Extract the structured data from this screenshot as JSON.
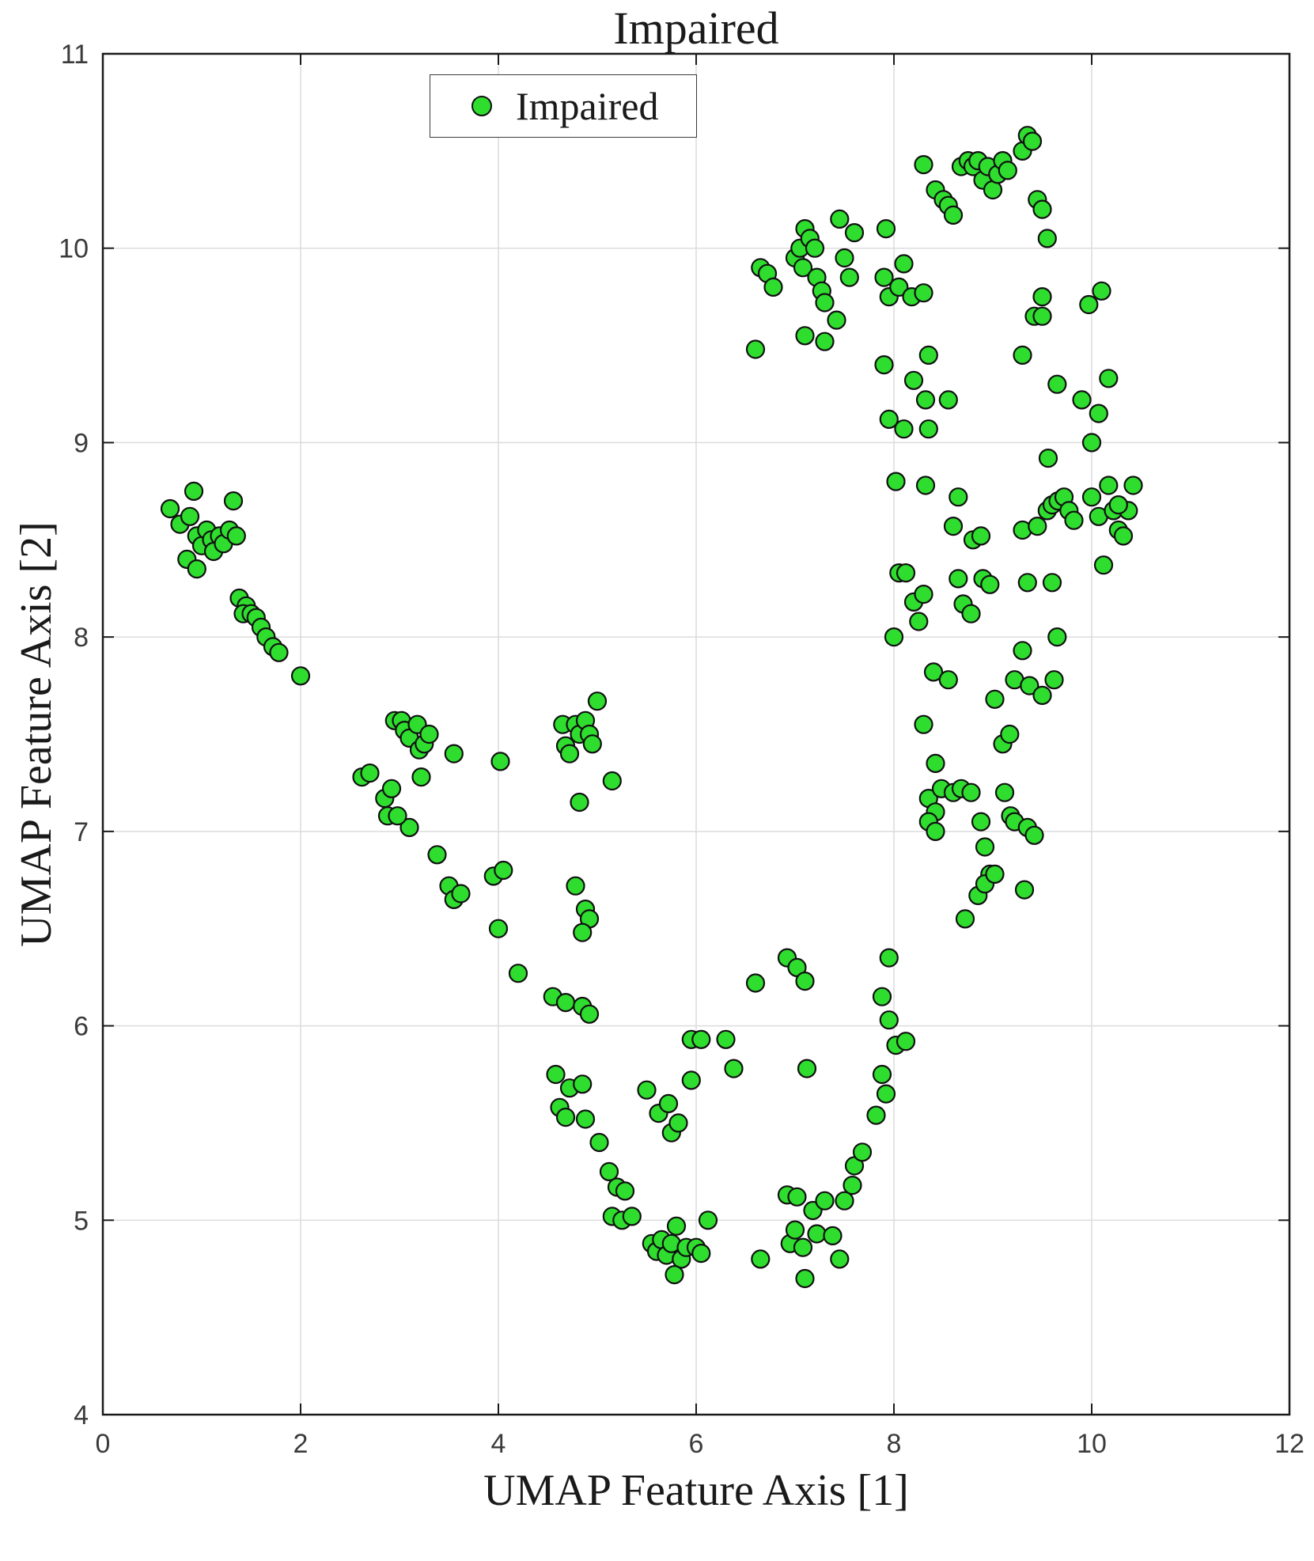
{
  "chart_data": {
    "type": "scatter",
    "title": "Impaired",
    "xlabel": "UMAP Feature Axis [1]",
    "ylabel": "UMAP Feature Axis [2]",
    "xlim": [
      0,
      12
    ],
    "ylim": [
      4,
      11
    ],
    "xticks": [
      0,
      2,
      4,
      6,
      8,
      10,
      12
    ],
    "yticks": [
      4,
      5,
      6,
      7,
      8,
      9,
      10,
      11
    ],
    "grid": true,
    "legend": {
      "label": "Impaired",
      "position": "top-center"
    },
    "marker": {
      "fill": "#2EDD2E",
      "edge": "#101010",
      "size": 22
    },
    "series": [
      {
        "name": "Impaired",
        "points": [
          [
            0.68,
            8.66
          ],
          [
            0.78,
            8.58
          ],
          [
            0.88,
            8.62
          ],
          [
            0.92,
            8.75
          ],
          [
            0.95,
            8.52
          ],
          [
            1.0,
            8.47
          ],
          [
            1.05,
            8.55
          ],
          [
            1.1,
            8.5
          ],
          [
            1.12,
            8.44
          ],
          [
            1.18,
            8.52
          ],
          [
            1.22,
            8.48
          ],
          [
            1.28,
            8.55
          ],
          [
            1.32,
            8.7
          ],
          [
            0.85,
            8.4
          ],
          [
            0.95,
            8.35
          ],
          [
            1.35,
            8.52
          ],
          [
            1.38,
            8.2
          ],
          [
            1.45,
            8.16
          ],
          [
            1.42,
            8.12
          ],
          [
            1.5,
            8.12
          ],
          [
            1.55,
            8.1
          ],
          [
            1.6,
            8.05
          ],
          [
            1.65,
            8.0
          ],
          [
            1.72,
            7.95
          ],
          [
            1.78,
            7.92
          ],
          [
            2.0,
            7.8
          ],
          [
            2.62,
            7.28
          ],
          [
            2.7,
            7.3
          ],
          [
            2.85,
            7.17
          ],
          [
            2.88,
            7.08
          ],
          [
            2.92,
            7.22
          ],
          [
            2.95,
            7.57
          ],
          [
            3.02,
            7.57
          ],
          [
            3.05,
            7.52
          ],
          [
            3.1,
            7.48
          ],
          [
            3.18,
            7.55
          ],
          [
            3.2,
            7.42
          ],
          [
            3.25,
            7.45
          ],
          [
            3.3,
            7.5
          ],
          [
            3.22,
            7.28
          ],
          [
            3.1,
            7.02
          ],
          [
            2.98,
            7.08
          ],
          [
            3.55,
            7.4
          ],
          [
            4.02,
            7.36
          ],
          [
            3.38,
            6.88
          ],
          [
            3.5,
            6.72
          ],
          [
            3.55,
            6.65
          ],
          [
            3.62,
            6.68
          ],
          [
            3.95,
            6.77
          ],
          [
            4.05,
            6.8
          ],
          [
            4.0,
            6.5
          ],
          [
            4.2,
            6.27
          ],
          [
            4.65,
            7.55
          ],
          [
            4.68,
            7.44
          ],
          [
            4.72,
            7.4
          ],
          [
            4.78,
            7.55
          ],
          [
            4.82,
            7.5
          ],
          [
            4.88,
            7.57
          ],
          [
            4.92,
            7.5
          ],
          [
            4.95,
            7.45
          ],
          [
            5.0,
            7.67
          ],
          [
            4.82,
            7.15
          ],
          [
            5.15,
            7.26
          ],
          [
            4.88,
            6.6
          ],
          [
            4.92,
            6.55
          ],
          [
            4.85,
            6.48
          ],
          [
            4.78,
            6.72
          ],
          [
            4.55,
            6.15
          ],
          [
            4.68,
            6.12
          ],
          [
            4.85,
            6.1
          ],
          [
            4.92,
            6.06
          ],
          [
            4.58,
            5.75
          ],
          [
            4.72,
            5.68
          ],
          [
            4.85,
            5.7
          ],
          [
            4.62,
            5.58
          ],
          [
            4.68,
            5.53
          ],
          [
            4.88,
            5.52
          ],
          [
            5.02,
            5.4
          ],
          [
            5.12,
            5.25
          ],
          [
            5.2,
            5.17
          ],
          [
            5.28,
            5.15
          ],
          [
            5.15,
            5.02
          ],
          [
            5.25,
            5.0
          ],
          [
            5.35,
            5.02
          ],
          [
            5.5,
            5.67
          ],
          [
            5.62,
            5.55
          ],
          [
            5.72,
            5.6
          ],
          [
            5.75,
            5.45
          ],
          [
            5.82,
            5.5
          ],
          [
            5.55,
            4.88
          ],
          [
            5.6,
            4.84
          ],
          [
            5.65,
            4.9
          ],
          [
            5.7,
            4.82
          ],
          [
            5.75,
            4.88
          ],
          [
            5.8,
            4.97
          ],
          [
            5.85,
            4.8
          ],
          [
            5.9,
            4.86
          ],
          [
            5.78,
            4.72
          ],
          [
            6.0,
            4.86
          ],
          [
            6.05,
            4.83
          ],
          [
            6.12,
            5.0
          ],
          [
            5.95,
            5.93
          ],
          [
            6.05,
            5.93
          ],
          [
            5.95,
            5.72
          ],
          [
            6.3,
            5.93
          ],
          [
            6.38,
            5.78
          ],
          [
            6.6,
            6.22
          ],
          [
            6.92,
            6.35
          ],
          [
            7.02,
            6.3
          ],
          [
            7.1,
            6.23
          ],
          [
            6.65,
            4.8
          ],
          [
            6.95,
            4.88
          ],
          [
            7.0,
            4.95
          ],
          [
            7.08,
            4.86
          ],
          [
            7.1,
            4.7
          ],
          [
            7.18,
            5.05
          ],
          [
            7.22,
            4.93
          ],
          [
            7.3,
            5.1
          ],
          [
            7.38,
            4.92
          ],
          [
            7.45,
            4.8
          ],
          [
            7.5,
            5.1
          ],
          [
            7.58,
            5.18
          ],
          [
            6.92,
            5.13
          ],
          [
            7.02,
            5.12
          ],
          [
            7.6,
            5.28
          ],
          [
            7.68,
            5.35
          ],
          [
            7.12,
            5.78
          ],
          [
            7.82,
            5.54
          ],
          [
            7.88,
            5.75
          ],
          [
            7.92,
            5.65
          ],
          [
            7.95,
            6.03
          ],
          [
            7.95,
            6.35
          ],
          [
            8.02,
            5.9
          ],
          [
            8.12,
            5.92
          ],
          [
            7.88,
            6.15
          ],
          [
            8.0,
            8.0
          ],
          [
            8.05,
            8.33
          ],
          [
            8.12,
            8.33
          ],
          [
            8.2,
            8.18
          ],
          [
            8.25,
            8.08
          ],
          [
            8.3,
            8.22
          ],
          [
            8.02,
            8.8
          ],
          [
            8.32,
            8.78
          ],
          [
            8.2,
            9.32
          ],
          [
            8.32,
            9.22
          ],
          [
            8.35,
            9.07
          ],
          [
            7.95,
            9.12
          ],
          [
            7.9,
            9.4
          ],
          [
            8.35,
            9.45
          ],
          [
            8.55,
            9.22
          ],
          [
            8.65,
            8.72
          ],
          [
            8.6,
            8.57
          ],
          [
            8.7,
            8.17
          ],
          [
            8.78,
            8.12
          ],
          [
            8.65,
            8.3
          ],
          [
            8.8,
            8.5
          ],
          [
            8.88,
            8.52
          ],
          [
            8.9,
            8.3
          ],
          [
            8.97,
            8.27
          ],
          [
            8.4,
            7.82
          ],
          [
            8.55,
            7.78
          ],
          [
            8.3,
            7.55
          ],
          [
            8.42,
            7.35
          ],
          [
            8.35,
            7.17
          ],
          [
            8.42,
            7.1
          ],
          [
            8.48,
            7.22
          ],
          [
            8.6,
            7.2
          ],
          [
            8.68,
            7.22
          ],
          [
            8.35,
            7.05
          ],
          [
            8.42,
            7.0
          ],
          [
            8.78,
            7.2
          ],
          [
            8.88,
            7.05
          ],
          [
            8.92,
            6.92
          ],
          [
            8.97,
            6.78
          ],
          [
            8.72,
            6.55
          ],
          [
            8.85,
            6.67
          ],
          [
            8.92,
            6.73
          ],
          [
            9.02,
            6.78
          ],
          [
            9.12,
            7.2
          ],
          [
            9.18,
            7.08
          ],
          [
            9.22,
            7.05
          ],
          [
            9.35,
            7.02
          ],
          [
            9.42,
            6.98
          ],
          [
            9.32,
            6.7
          ],
          [
            9.1,
            7.45
          ],
          [
            9.17,
            7.5
          ],
          [
            9.02,
            7.68
          ],
          [
            9.22,
            7.78
          ],
          [
            9.3,
            7.93
          ],
          [
            9.37,
            7.75
          ],
          [
            9.5,
            7.7
          ],
          [
            9.62,
            7.78
          ],
          [
            9.65,
            8.0
          ],
          [
            9.6,
            8.28
          ],
          [
            9.35,
            8.28
          ],
          [
            9.3,
            8.55
          ],
          [
            9.45,
            8.57
          ],
          [
            9.55,
            8.65
          ],
          [
            9.6,
            8.68
          ],
          [
            9.66,
            8.7
          ],
          [
            9.72,
            8.72
          ],
          [
            9.77,
            8.65
          ],
          [
            9.82,
            8.6
          ],
          [
            9.56,
            8.92
          ],
          [
            9.3,
            9.45
          ],
          [
            9.42,
            9.65
          ],
          [
            9.5,
            9.75
          ],
          [
            9.65,
            9.3
          ],
          [
            9.9,
            9.22
          ],
          [
            10.0,
            9.0
          ],
          [
            10.07,
            9.15
          ],
          [
            9.97,
            9.71
          ],
          [
            10.1,
            9.78
          ],
          [
            10.17,
            9.33
          ],
          [
            10.0,
            8.72
          ],
          [
            10.07,
            8.62
          ],
          [
            10.12,
            8.37
          ],
          [
            10.17,
            8.78
          ],
          [
            10.22,
            8.65
          ],
          [
            10.27,
            8.55
          ],
          [
            10.32,
            8.52
          ],
          [
            10.37,
            8.65
          ],
          [
            10.42,
            8.78
          ],
          [
            10.27,
            8.68
          ],
          [
            6.6,
            9.48
          ],
          [
            6.65,
            9.9
          ],
          [
            6.72,
            9.87
          ],
          [
            6.78,
            9.8
          ],
          [
            7.0,
            9.95
          ],
          [
            7.05,
            10.0
          ],
          [
            7.08,
            9.9
          ],
          [
            7.1,
            10.1
          ],
          [
            7.15,
            10.05
          ],
          [
            7.2,
            10.0
          ],
          [
            7.22,
            9.85
          ],
          [
            7.27,
            9.78
          ],
          [
            7.3,
            9.72
          ],
          [
            7.1,
            9.55
          ],
          [
            7.3,
            9.52
          ],
          [
            7.42,
            9.63
          ],
          [
            7.45,
            10.15
          ],
          [
            7.5,
            9.95
          ],
          [
            7.55,
            9.85
          ],
          [
            7.6,
            10.08
          ],
          [
            7.9,
            9.85
          ],
          [
            7.95,
            9.75
          ],
          [
            7.92,
            10.1
          ],
          [
            8.1,
            9.92
          ],
          [
            8.05,
            9.8
          ],
          [
            8.18,
            9.75
          ],
          [
            8.3,
            9.77
          ],
          [
            8.1,
            9.07
          ],
          [
            8.3,
            10.43
          ],
          [
            8.42,
            10.3
          ],
          [
            8.5,
            10.25
          ],
          [
            8.55,
            10.22
          ],
          [
            8.6,
            10.17
          ],
          [
            8.68,
            10.42
          ],
          [
            8.75,
            10.45
          ],
          [
            8.8,
            10.42
          ],
          [
            8.85,
            10.45
          ],
          [
            8.9,
            10.35
          ],
          [
            8.95,
            10.42
          ],
          [
            9.0,
            10.3
          ],
          [
            9.05,
            10.38
          ],
          [
            9.1,
            10.45
          ],
          [
            9.15,
            10.4
          ],
          [
            9.3,
            10.5
          ],
          [
            9.35,
            10.58
          ],
          [
            9.4,
            10.55
          ],
          [
            9.45,
            10.25
          ],
          [
            9.5,
            10.2
          ],
          [
            9.55,
            10.05
          ],
          [
            9.5,
            9.65
          ]
        ]
      }
    ]
  }
}
